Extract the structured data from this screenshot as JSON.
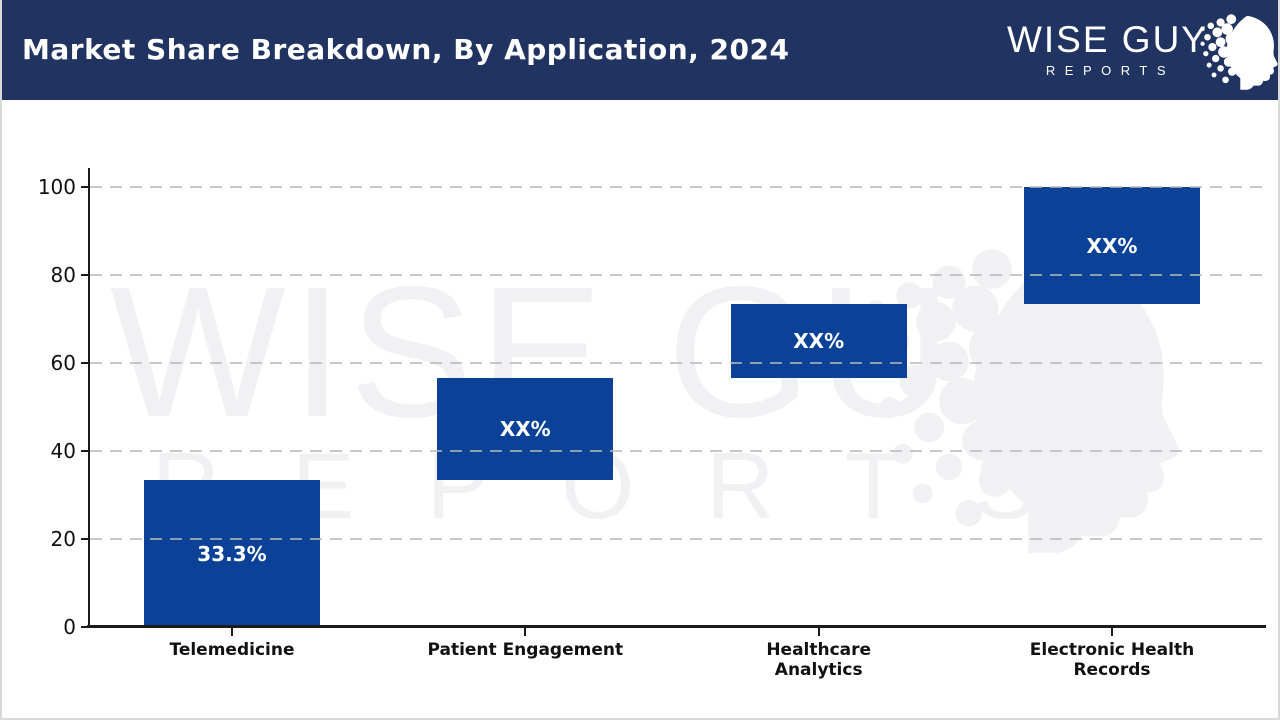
{
  "header": {
    "title": "Market Share Breakdown, By Application, 2024",
    "bg_color": "#213461",
    "logo": {
      "name": "WISE GUY",
      "tagline": "REPORTS"
    }
  },
  "watermark": {
    "name": "WISE GUY",
    "tagline": "REPORTS"
  },
  "chart_data": {
    "type": "bar",
    "subtype": "waterfall",
    "title": "Market Share Breakdown, By Application, 2024",
    "categories": [
      "Telemedicine",
      "Patient Engagement",
      "Healthcare Analytics",
      "Electronic Health Records"
    ],
    "category_lines": [
      [
        "Telemedicine"
      ],
      [
        "Patient Engagement"
      ],
      [
        "Healthcare",
        "Analytics"
      ],
      [
        "Electronic Health",
        "Records"
      ]
    ],
    "segments": [
      {
        "category": "Telemedicine",
        "start": 0,
        "end": 33.3,
        "label": "33.3%"
      },
      {
        "category": "Patient Engagement",
        "start": 33.3,
        "end": 56.6,
        "label": "XX%"
      },
      {
        "category": "Healthcare Analytics",
        "start": 56.7,
        "end": 73.3,
        "label": "XX%"
      },
      {
        "category": "Electronic Health Records",
        "start": 73.3,
        "end": 100,
        "label": "XX%"
      }
    ],
    "yticks": [
      0,
      20,
      40,
      60,
      80,
      100
    ],
    "ylim": [
      0,
      104
    ],
    "xlabel": "",
    "ylabel": "",
    "grid": {
      "axis": "y",
      "style": "dashed",
      "color": "#c9c9c9"
    },
    "legend": "none",
    "bar_color": "#0b4298",
    "bar_label_color": "#ffffff",
    "axis_color": "#1a1a1a"
  }
}
